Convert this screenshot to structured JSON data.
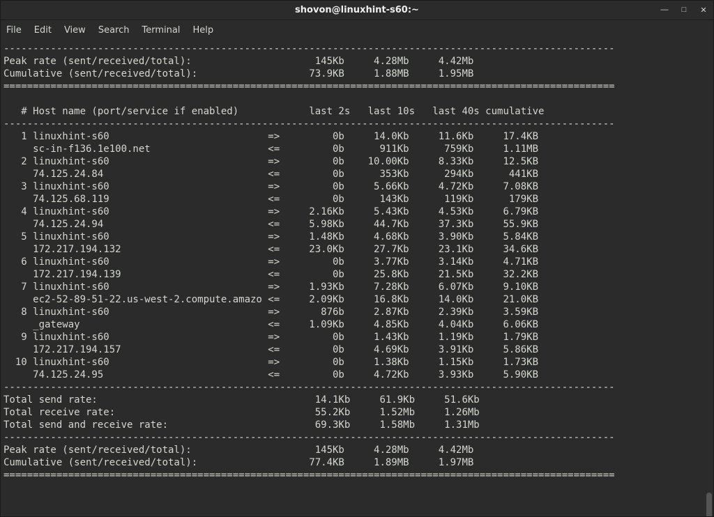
{
  "window": {
    "title": "shovon@linuxhint-s60:~"
  },
  "menu": {
    "file": "File",
    "edit": "Edit",
    "view": "View",
    "search": "Search",
    "terminal": "Terminal",
    "help": "Help"
  },
  "sep_dash": "--------------------------------------------------------------------------------------------------------",
  "sep_eq": "========================================================================================================",
  "top_peak": "Peak rate (sent/received/total):                     145Kb     4.28Mb     4.42Mb",
  "top_cum": "Cumulative (sent/received/total):                   73.9KB     1.88MB     1.95MB",
  "header": "   # Host name (port/service if enabled)            last 2s   last 10s   last 40s cumulative",
  "rows": {
    "r01a": "   1 linuxhint-s60                           =>         0b     14.0Kb     11.6Kb     17.4KB",
    "r01b": "     sc-in-f136.1e100.net                    <=         0b      911Kb      759Kb     1.11MB",
    "r02a": "   2 linuxhint-s60                           =>         0b    10.00Kb     8.33Kb     12.5KB",
    "r02b": "     74.125.24.84                            <=         0b      353Kb      294Kb      441KB",
    "r03a": "   3 linuxhint-s60                           =>         0b     5.66Kb     4.72Kb     7.08KB",
    "r03b": "     74.125.68.119                           <=         0b      143Kb      119Kb      179KB",
    "r04a": "   4 linuxhint-s60                           =>     2.16Kb     5.43Kb     4.53Kb     6.79KB",
    "r04b": "     74.125.24.94                            <=     5.98Kb     44.7Kb     37.3Kb     55.9KB",
    "r05a": "   5 linuxhint-s60                           =>     1.48Kb     4.68Kb     3.90Kb     5.84KB",
    "r05b": "     172.217.194.132                         <=     23.0Kb     27.7Kb     23.1Kb     34.6KB",
    "r06a": "   6 linuxhint-s60                           =>         0b     3.77Kb     3.14Kb     4.71KB",
    "r06b": "     172.217.194.139                         <=         0b     25.8Kb     21.5Kb     32.2KB",
    "r07a": "   7 linuxhint-s60                           =>     1.93Kb     7.28Kb     6.07Kb     9.10KB",
    "r07b": "     ec2-52-89-51-22.us-west-2.compute.amazo <=     2.09Kb     16.8Kb     14.0Kb     21.0KB",
    "r08a": "   8 linuxhint-s60                           =>       876b     2.87Kb     2.39Kb     3.59KB",
    "r08b": "     _gateway                                <=     1.09Kb     4.85Kb     4.04Kb     6.06KB",
    "r09a": "   9 linuxhint-s60                           =>         0b     1.43Kb     1.19Kb     1.79KB",
    "r09b": "     172.217.194.157                         <=         0b     4.69Kb     3.91Kb     5.86KB",
    "r10a": "  10 linuxhint-s60                           =>         0b     1.38Kb     1.15Kb     1.73KB",
    "r10b": "     74.125.24.95                            <=         0b     4.72Kb     3.93Kb     5.90KB"
  },
  "totals": {
    "send": "Total send rate:                                     14.1Kb     61.9Kb     51.6Kb",
    "recv": "Total receive rate:                                  55.2Kb     1.52Mb     1.26Mb",
    "both": "Total send and receive rate:                         69.3Kb     1.58Mb     1.31Mb"
  },
  "bottom_peak": "Peak rate (sent/received/total):                     145Kb     4.28Mb     4.42Mb",
  "bottom_cum": "Cumulative (sent/received/total):                   77.4KB     1.89MB     1.97MB",
  "colors": {
    "bg": "#2b2b2b",
    "fg": "#d3d7cf"
  }
}
